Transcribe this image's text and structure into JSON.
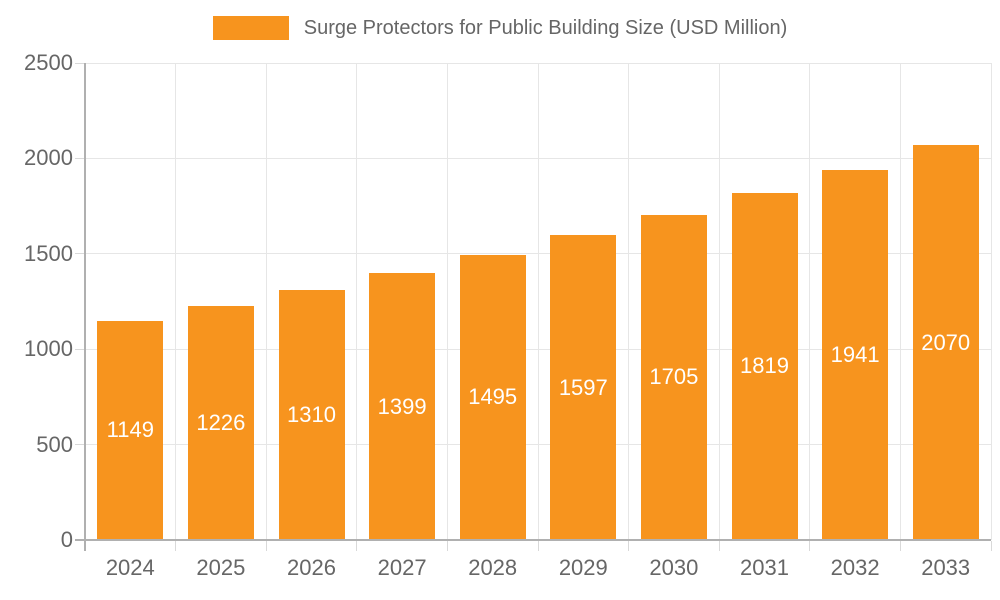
{
  "legend": {
    "label": "Surge Protectors for Public Building Size (USD Million)",
    "swatch_color": "#f7941e"
  },
  "chart_data": {
    "type": "bar",
    "title": "Surge Protectors for Public Building Size (USD Million)",
    "categories": [
      "2024",
      "2025",
      "2026",
      "2027",
      "2028",
      "2029",
      "2030",
      "2031",
      "2032",
      "2033"
    ],
    "values": [
      1149,
      1226,
      1310,
      1399,
      1495,
      1597,
      1705,
      1819,
      1941,
      2070
    ],
    "series": [
      {
        "name": "Surge Protectors for Public Building Size (USD Million)",
        "values": [
          1149,
          1226,
          1310,
          1399,
          1495,
          1597,
          1705,
          1819,
          1941,
          2070
        ]
      }
    ],
    "xlabel": "",
    "ylabel": "",
    "ylim": [
      0,
      2500
    ],
    "yticks": [
      0,
      500,
      1000,
      1500,
      2000,
      2500
    ],
    "grid": true,
    "legend_position": "top-center",
    "colors": {
      "bar": "#f7941e",
      "grid": "#e6e6e6",
      "axis_line": "#b0b0b0",
      "tick": "#d9d9d9",
      "axis_text": "#666666",
      "value_label": "#ffffff"
    }
  }
}
